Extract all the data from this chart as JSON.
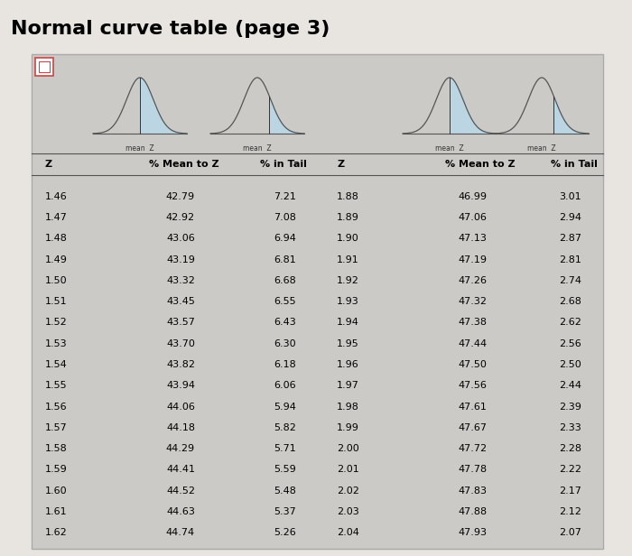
{
  "title": "Normal curve table (page 3)",
  "title_fontsize": 16,
  "page_bg": "#e8e5e0",
  "table_bg": "#dcdad6",
  "header_row": [
    "Z",
    "% Mean to Z",
    "% in Tail",
    "Z",
    "% Mean to Z",
    "% in Tail"
  ],
  "left_data": [
    [
      "1.46",
      "42.79",
      "7.21"
    ],
    [
      "1.47",
      "42.92",
      "7.08"
    ],
    [
      "1.48",
      "43.06",
      "6.94"
    ],
    [
      "1.49",
      "43.19",
      "6.81"
    ],
    [
      "1.50",
      "43.32",
      "6.68"
    ],
    [
      "1.51",
      "43.45",
      "6.55"
    ],
    [
      "1.52",
      "43.57",
      "6.43"
    ],
    [
      "1.53",
      "43.70",
      "6.30"
    ],
    [
      "1.54",
      "43.82",
      "6.18"
    ],
    [
      "1.55",
      "43.94",
      "6.06"
    ],
    [
      "1.56",
      "44.06",
      "5.94"
    ],
    [
      "1.57",
      "44.18",
      "5.82"
    ],
    [
      "1.58",
      "44.29",
      "5.71"
    ],
    [
      "1.59",
      "44.41",
      "5.59"
    ],
    [
      "1.60",
      "44.52",
      "5.48"
    ],
    [
      "1.61",
      "44.63",
      "5.37"
    ],
    [
      "1.62",
      "44.74",
      "5.26"
    ]
  ],
  "right_data": [
    [
      "1.88",
      "46.99",
      "3.01"
    ],
    [
      "1.89",
      "47.06",
      "2.94"
    ],
    [
      "1.90",
      "47.13",
      "2.87"
    ],
    [
      "1.91",
      "47.19",
      "2.81"
    ],
    [
      "1.92",
      "47.26",
      "2.74"
    ],
    [
      "1.93",
      "47.32",
      "2.68"
    ],
    [
      "1.94",
      "47.38",
      "2.62"
    ],
    [
      "1.95",
      "47.44",
      "2.56"
    ],
    [
      "1.96",
      "47.50",
      "2.50"
    ],
    [
      "1.97",
      "47.56",
      "2.44"
    ],
    [
      "1.98",
      "47.61",
      "2.39"
    ],
    [
      "1.99",
      "47.67",
      "2.33"
    ],
    [
      "2.00",
      "47.72",
      "2.28"
    ],
    [
      "2.01",
      "47.78",
      "2.22"
    ],
    [
      "2.02",
      "47.83",
      "2.17"
    ],
    [
      "2.03",
      "47.88",
      "2.12"
    ],
    [
      "2.04",
      "47.93",
      "2.07"
    ]
  ],
  "curve_fill_color": "#b8d8e8",
  "curve_line_color": "#555555"
}
